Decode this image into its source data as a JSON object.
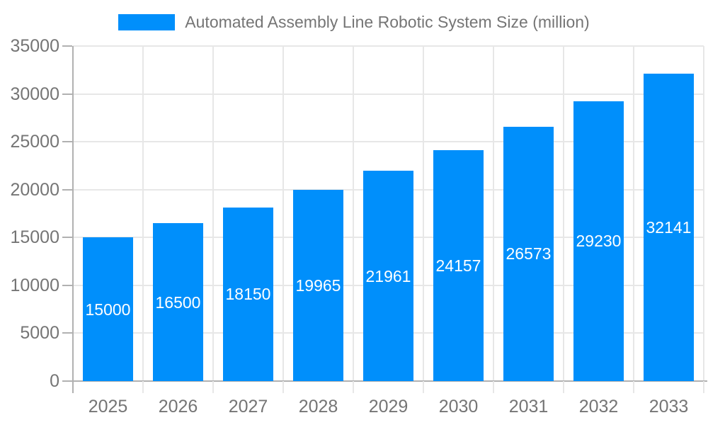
{
  "chart_data": {
    "type": "bar",
    "title": "Automated Assembly Line Robotic System Size (million)",
    "series": [
      {
        "name": "Automated Assembly Line Robotic System Size (million)",
        "values": [
          15000,
          16500,
          18150,
          19965,
          21961,
          24157,
          26573,
          29230,
          32141
        ]
      }
    ],
    "categories": [
      "2025",
      "2026",
      "2027",
      "2028",
      "2029",
      "2030",
      "2031",
      "2032",
      "2033"
    ],
    "bar_value_labels": [
      "15000",
      "16500",
      "18150",
      "19965",
      "21961",
      "24157",
      "26573",
      "29230",
      "32141"
    ],
    "xlabel": "",
    "ylabel": "",
    "ylim": [
      0,
      35000
    ],
    "ytick_step": 5000,
    "yticks": [
      0,
      5000,
      10000,
      15000,
      20000,
      25000,
      30000,
      35000
    ],
    "ytick_labels": [
      "0",
      "5000",
      "10000",
      "15000",
      "20000",
      "25000",
      "30000",
      "35000"
    ],
    "grid": true,
    "legend_position": "top",
    "colors": {
      "bar": "#008FFB",
      "bar_label_text": "#ffffff",
      "axis_label_text": "#757575",
      "legend_text": "#757575",
      "gridline": "#e7e7e7",
      "axis_line": "#b1b1b1",
      "background": "#ffffff"
    }
  }
}
